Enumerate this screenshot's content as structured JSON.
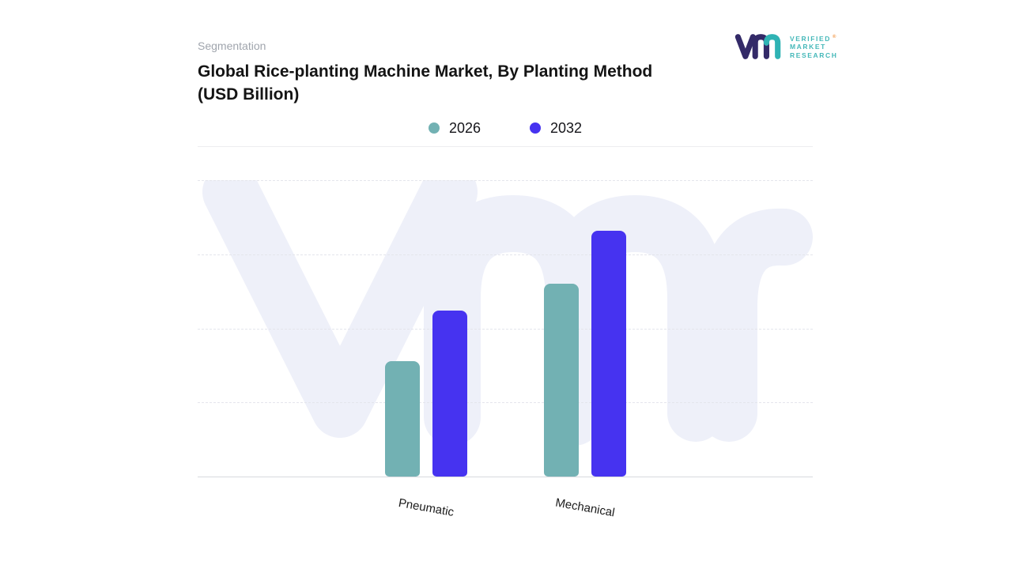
{
  "header": {
    "eyebrow": "Segmentation",
    "title_lines": [
      "Global Rice-planting Machine Market, By Planting Method",
      "(USD Billion)"
    ]
  },
  "logo": {
    "lines": [
      "VERIFIED",
      "MARKET",
      "RESEARCH"
    ],
    "registered": "®",
    "text_color": "#45b8b9",
    "monogram_navy": "#332a68",
    "monogram_teal": "#2fb3b4",
    "registered_color": "#f2994a"
  },
  "chart_data": {
    "type": "bar",
    "title": "Global Rice-planting Machine Market, By Planting Method (USD Billion)",
    "categories": [
      "Pneumatic",
      "Mechanical"
    ],
    "series": [
      {
        "name": "2026",
        "color": "#72b1b3",
        "values": [
          3.9,
          6.5
        ]
      },
      {
        "name": "2032",
        "color": "#4633f0",
        "values": [
          5.6,
          8.3
        ]
      }
    ],
    "xlabel": "",
    "ylabel": "",
    "ylim": [
      0,
      10
    ],
    "y_tick_labels_visible": false,
    "grid": "horizontal-dashed",
    "legend_position": "top-center",
    "watermark": "vmr",
    "background": "#ffffff"
  }
}
